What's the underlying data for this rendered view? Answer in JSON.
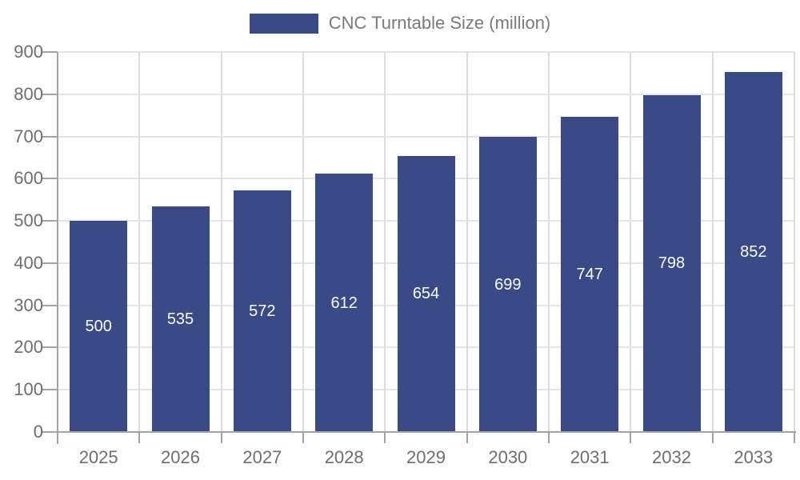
{
  "chart_data": {
    "type": "bar",
    "title": "",
    "xlabel": "",
    "ylabel": "",
    "categories": [
      "2025",
      "2026",
      "2027",
      "2028",
      "2029",
      "2030",
      "2031",
      "2032",
      "2033"
    ],
    "series": [
      {
        "name": "CNC Turntable Size (million)",
        "values": [
          500,
          535,
          572,
          612,
          654,
          699,
          747,
          798,
          852
        ]
      }
    ],
    "value_labels_shown": true,
    "ylim": [
      0,
      900
    ],
    "yticks": [
      0,
      100,
      200,
      300,
      400,
      500,
      600,
      700,
      800,
      900
    ],
    "grid": "horizontal and vertical gridlines on",
    "legend_position": "top-center"
  },
  "legend": {
    "label": "CNC Turntable Size (million)"
  },
  "colors": {
    "bar": "#3A4A86",
    "bar_value_text": "#ffffff",
    "hgrid": "#e4e4e6",
    "vgrid": "#dcdce2",
    "axis": "#a3a3a3",
    "tick_label": "#6e6e6e",
    "legend_text": "#7a7a7a",
    "background": "#ffffff"
  }
}
